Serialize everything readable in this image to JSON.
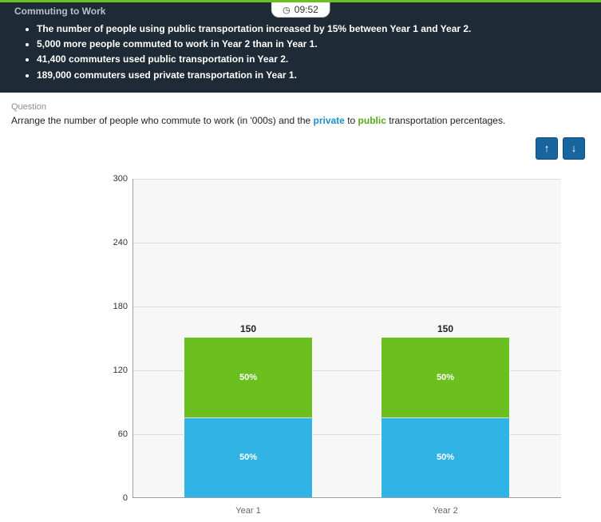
{
  "banner": {
    "title": "Commuting to Work",
    "timer": "09:52",
    "bullets": [
      "The number of people using public transportation increased by 15% between Year 1 and Year 2.",
      "5,000 more people commuted to work in Year 2 than in Year 1.",
      "41,400 commuters used public transportation in Year 2.",
      "189,000 commuters used private transportation in Year 1."
    ]
  },
  "question": {
    "label": "Question",
    "pre": "Arrange the number of people who commute to work (in '000s) and the ",
    "private_word": "private",
    "mid": " to ",
    "public_word": "public",
    "post": " transportation percentages."
  },
  "controls": {
    "up": "↑",
    "down": "↓"
  },
  "chart": {
    "type": "stacked-bar",
    "y_max": 300,
    "y_ticks": [
      0,
      60,
      120,
      180,
      240,
      300
    ],
    "categories": [
      "Year 1",
      "Year 2"
    ],
    "bar_width_pct": 30,
    "bar_positions_pct": [
      27,
      73
    ],
    "bars": [
      {
        "total": 150,
        "total_label": "150",
        "segments": [
          {
            "value": 75,
            "label": "50%",
            "color": "#30b4e6"
          },
          {
            "value": 75,
            "label": "50%",
            "color": "#6bbf1f"
          }
        ]
      },
      {
        "total": 150,
        "total_label": "150",
        "segments": [
          {
            "value": 75,
            "label": "50%",
            "color": "#30b4e6"
          },
          {
            "value": 75,
            "label": "50%",
            "color": "#6bbf1f"
          }
        ]
      }
    ],
    "plot_bg": "#f7f7f7",
    "grid_color": "#d9dde1",
    "axis_color": "#9aa0a6",
    "tick_font_size": 11,
    "total_label_font_size": 12
  },
  "colors": {
    "banner_bg": "#1e2a36",
    "accent_green": "#6bbf1f",
    "btn_bg": "#18649e"
  }
}
